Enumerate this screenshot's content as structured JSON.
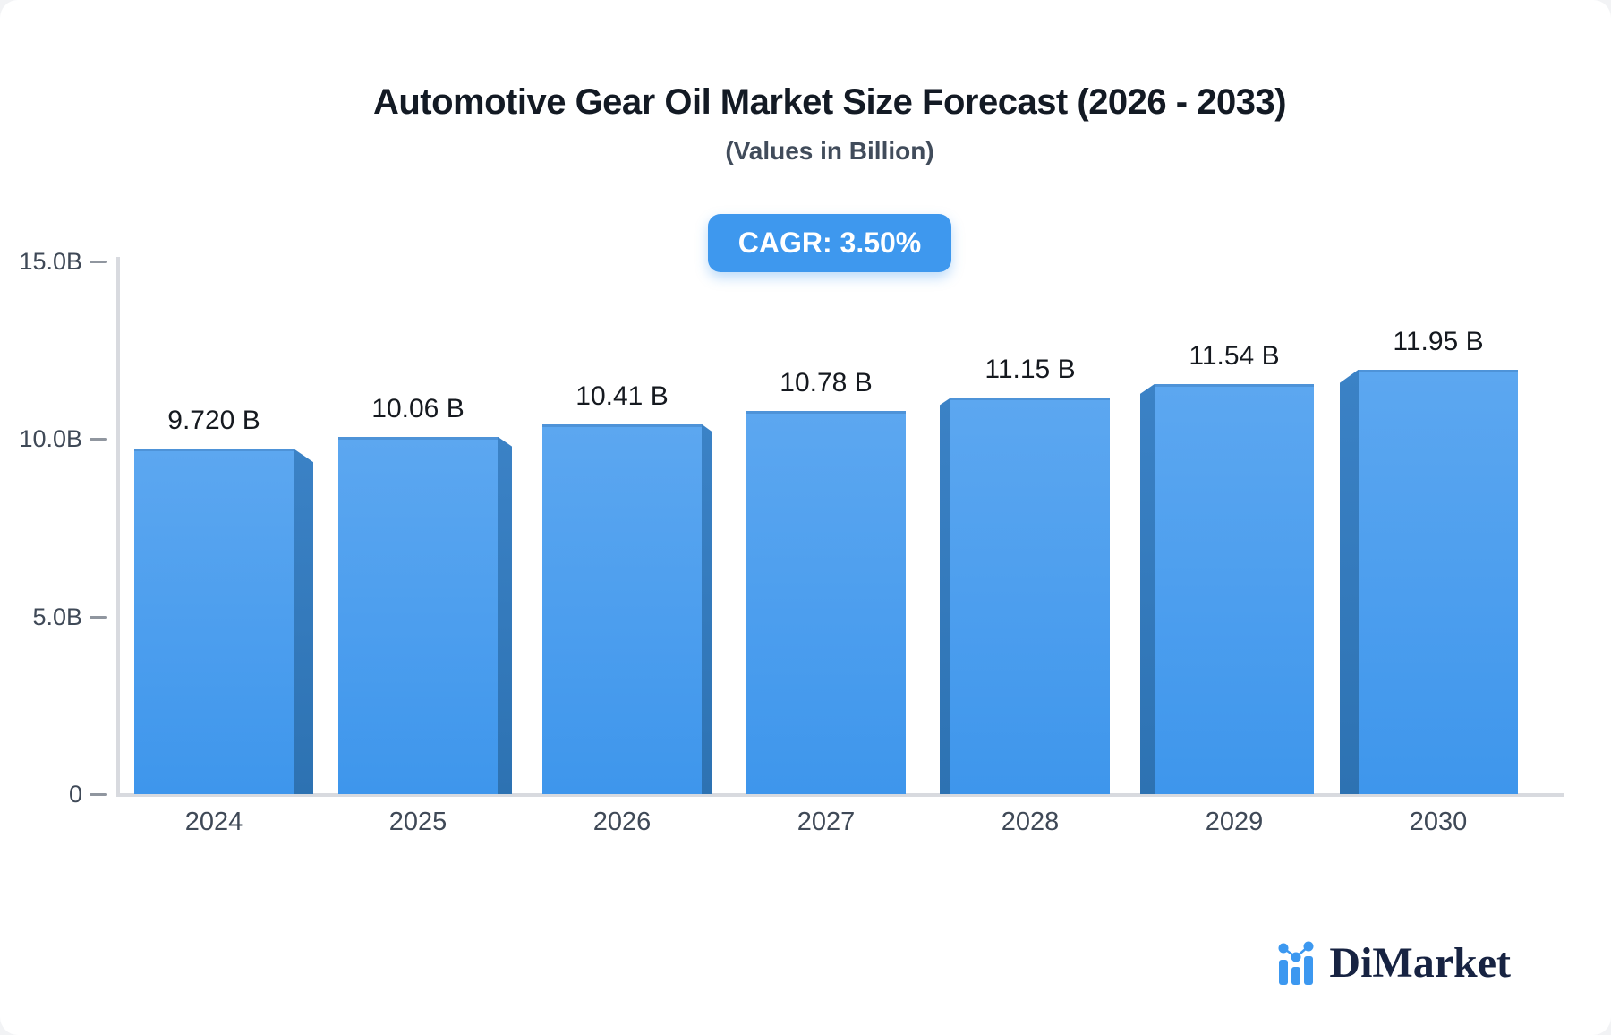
{
  "header": {
    "title": "Automotive Gear Oil Market Size Forecast (2026 - 2033)",
    "subtitle": "(Values in Billion)",
    "cagr_badge": "CAGR: 3.50%"
  },
  "chart_data": {
    "type": "bar",
    "title": "Automotive Gear Oil Market Size Forecast (2026 - 2033)",
    "subtitle": "(Values in Billion)",
    "unit": "Billion",
    "cagr_percent": "3.50%",
    "categories": [
      "2024",
      "2025",
      "2026",
      "2027",
      "2028",
      "2029",
      "2030"
    ],
    "values": [
      9.72,
      10.06,
      10.41,
      10.78,
      11.15,
      11.54,
      11.95
    ],
    "value_labels": [
      "9.720 B",
      "10.06 B",
      "10.41 B",
      "10.78 B",
      "11.15 B",
      "11.54 B",
      "11.95 B"
    ],
    "y_axis": {
      "range": [
        0,
        15
      ],
      "ticks": [
        {
          "label": "15.0B",
          "value": 15
        },
        {
          "label": "10.0B",
          "value": 10
        },
        {
          "label": "5.0B",
          "value": 5
        },
        {
          "label": "0",
          "value": 0
        }
      ],
      "grid": false
    },
    "legend": "none",
    "bar_style": "3d-perspective-center"
  },
  "colors": {
    "badge_bg": "#3e98ee",
    "bar_face_top": "#5ca7f0",
    "bar_face_bottom": "#3e96ec",
    "bar_side_light": "#3b82c6",
    "bar_side_dark": "#2d72b2",
    "axis": "#d8dadf",
    "tick_text": "#3f4957",
    "value_text": "#15191f",
    "logo_blue": "#3c98f0",
    "logo_navy": "#172342"
  },
  "logo": {
    "icon": "mini-bar-chart-icon",
    "text": "DiMarket"
  }
}
